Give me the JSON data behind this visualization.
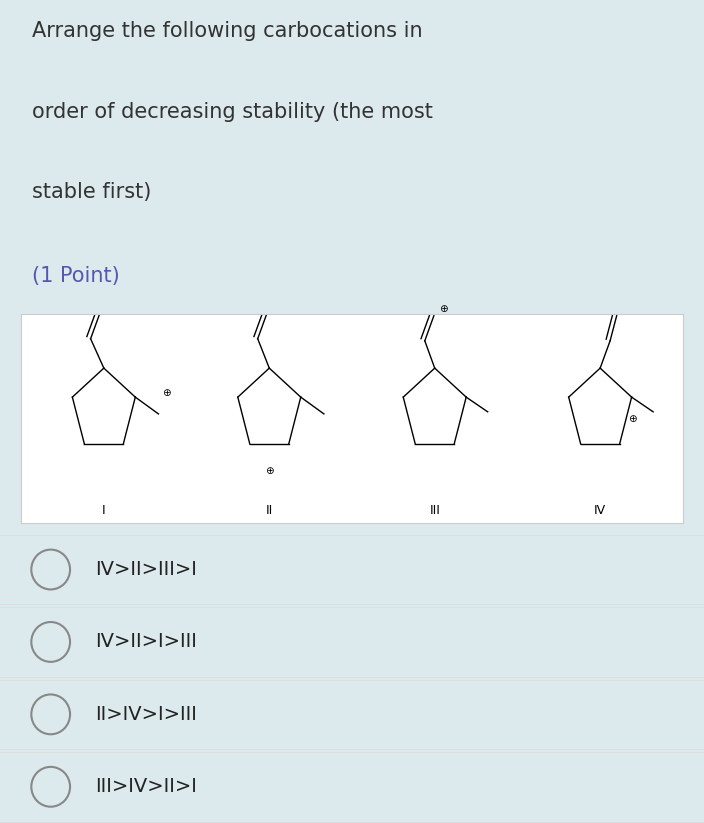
{
  "title_lines": [
    "Arrange the following carbocations in",
    "order of decreasing stability (the most",
    "stable first)"
  ],
  "subtitle": "(1 Point)",
  "bg_top": "#dce9ed",
  "bg_options": "#eeeeee",
  "bg_white": "#ffffff",
  "border_color": "#cccccc",
  "options": [
    "IV>II>III>I",
    "IV>II>I>III",
    "II>IV>I>III",
    "III>IV>II>I"
  ],
  "text_color": "#333333",
  "blue_color": "#5558af",
  "option_text_color": "#222222",
  "radio_color": "#888888"
}
